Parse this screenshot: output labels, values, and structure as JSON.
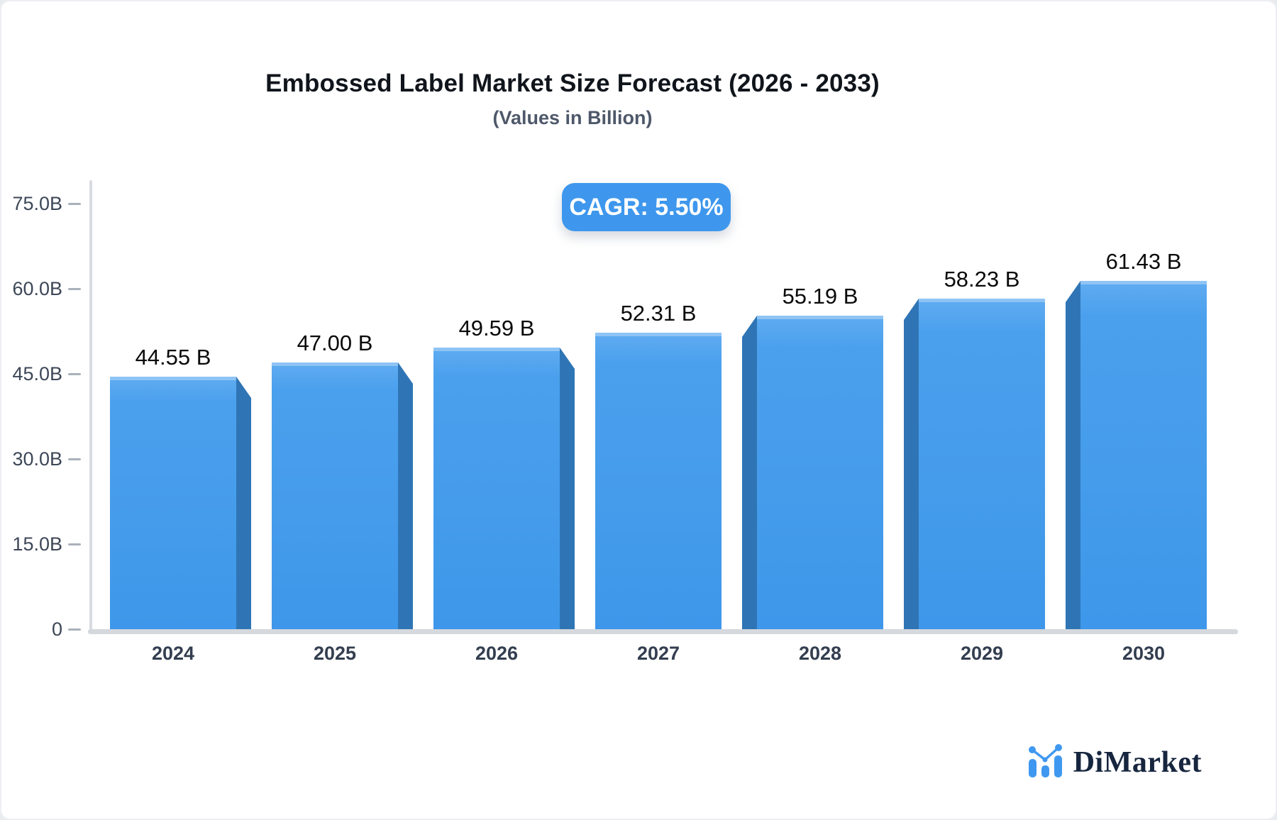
{
  "header": {
    "title": "Embossed Label Market Size Forecast (2026 - 2033)",
    "subtitle": "(Values in Billion)",
    "cagr_label": "CAGR: 5.50%",
    "badge_color": "#3E97ED"
  },
  "chart_data": {
    "type": "bar",
    "title": "Embossed Label Market Size Forecast (2026 - 2033)",
    "subtitle": "(Values in Billion)",
    "cagr": "5.50%",
    "categories": [
      "2024",
      "2025",
      "2026",
      "2027",
      "2028",
      "2029",
      "2030"
    ],
    "values": [
      44.55,
      47.0,
      49.59,
      52.31,
      55.19,
      58.23,
      61.43
    ],
    "value_labels": [
      "44.55 B",
      "47.00 B",
      "49.59 B",
      "52.31 B",
      "55.19 B",
      "58.23 B",
      "61.43 B"
    ],
    "ylim": [
      0,
      75
    ],
    "y_ticks": [
      {
        "label": "75.0B",
        "value": 75
      },
      {
        "label": "60.0B",
        "value": 60
      },
      {
        "label": "45.0B",
        "value": 45
      },
      {
        "label": "30.0B",
        "value": 30
      },
      {
        "label": "15.0B",
        "value": 15
      },
      {
        "label": "0",
        "value": 0
      }
    ],
    "grid": false,
    "legend": false,
    "bar_face_color": "#459CEB",
    "bar_side_color": "#2F75B5"
  },
  "footer": {
    "brand": "DiMarket",
    "brand_color": "#17263f",
    "icon_color": "#3F98F0"
  }
}
